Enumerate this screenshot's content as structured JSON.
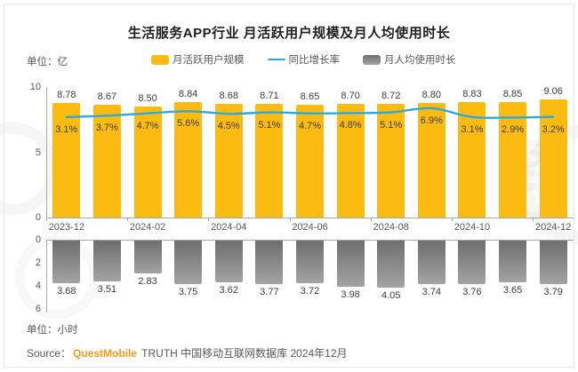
{
  "title": "生活服务APP行业 月活跃用户规模及月人均使用时长",
  "units": {
    "top": "单位：亿",
    "bottom": "单位：小时"
  },
  "legend": [
    {
      "label": "月活跃用户规模",
      "type": "bar",
      "color": "#fbbb10"
    },
    {
      "label": "同比增长率",
      "type": "line",
      "color": "#2ea9df"
    },
    {
      "label": "月人均使用时长",
      "type": "bar",
      "color": "#7f7f7f"
    }
  ],
  "source": {
    "prefix": "Source：",
    "brand": "QuestMobile",
    "rest": " TRUTH 中国移动互联网数据库 2024年12月"
  },
  "colors": {
    "bar_yellow": "#fbbb10",
    "line_blue": "#2ea9df",
    "bar_gray_top": "#6e6e6e",
    "bar_gray_bottom": "#a3a3a3",
    "brand_orange": "#f39b1a",
    "axis_gray": "#a6a6a6"
  },
  "chart_data": [
    {
      "type": "bar",
      "title": "月活跃用户规模及同比增长率",
      "categories": [
        "2023-12",
        "2024-01",
        "2024-02",
        "2024-03",
        "2024-04",
        "2024-05",
        "2024-06",
        "2024-07",
        "2024-08",
        "2024-09",
        "2024-10",
        "2024-11",
        "2024-12"
      ],
      "x_tick_labels_shown": [
        "2023-12",
        "2024-02",
        "2024-04",
        "2024-06",
        "2024-08",
        "2024-10",
        "2024-12"
      ],
      "series": [
        {
          "name": "月活跃用户规模",
          "type": "bar",
          "unit": "亿",
          "values": [
            8.78,
            8.67,
            8.5,
            8.84,
            8.68,
            8.71,
            8.65,
            8.7,
            8.72,
            8.8,
            8.83,
            8.85,
            9.06
          ]
        },
        {
          "name": "同比增长率",
          "type": "line",
          "unit": "%",
          "values": [
            3.1,
            3.7,
            4.7,
            5.6,
            4.5,
            5.1,
            4.7,
            4.8,
            5.1,
            6.9,
            3.1,
            2.9,
            3.2
          ]
        }
      ],
      "ylabel": "单位：亿",
      "ylim": [
        0,
        10
      ],
      "yticks": [
        0,
        5,
        10
      ],
      "grid": false,
      "legend_position": "top"
    },
    {
      "type": "bar",
      "title": "月人均使用时长",
      "categories": [
        "2023-12",
        "2024-01",
        "2024-02",
        "2024-03",
        "2024-04",
        "2024-05",
        "2024-06",
        "2024-07",
        "2024-08",
        "2024-09",
        "2024-10",
        "2024-11",
        "2024-12"
      ],
      "series": [
        {
          "name": "月人均使用时长",
          "type": "bar",
          "unit": "小时",
          "values": [
            3.68,
            3.51,
            2.83,
            3.75,
            3.62,
            3.77,
            3.72,
            3.98,
            4.05,
            3.74,
            3.76,
            3.65,
            3.79
          ]
        }
      ],
      "ylabel": "单位：小时",
      "ylim": [
        0,
        6
      ],
      "yticks": [
        0,
        2,
        4,
        6
      ],
      "axis_inverted": true,
      "grid": false
    }
  ]
}
